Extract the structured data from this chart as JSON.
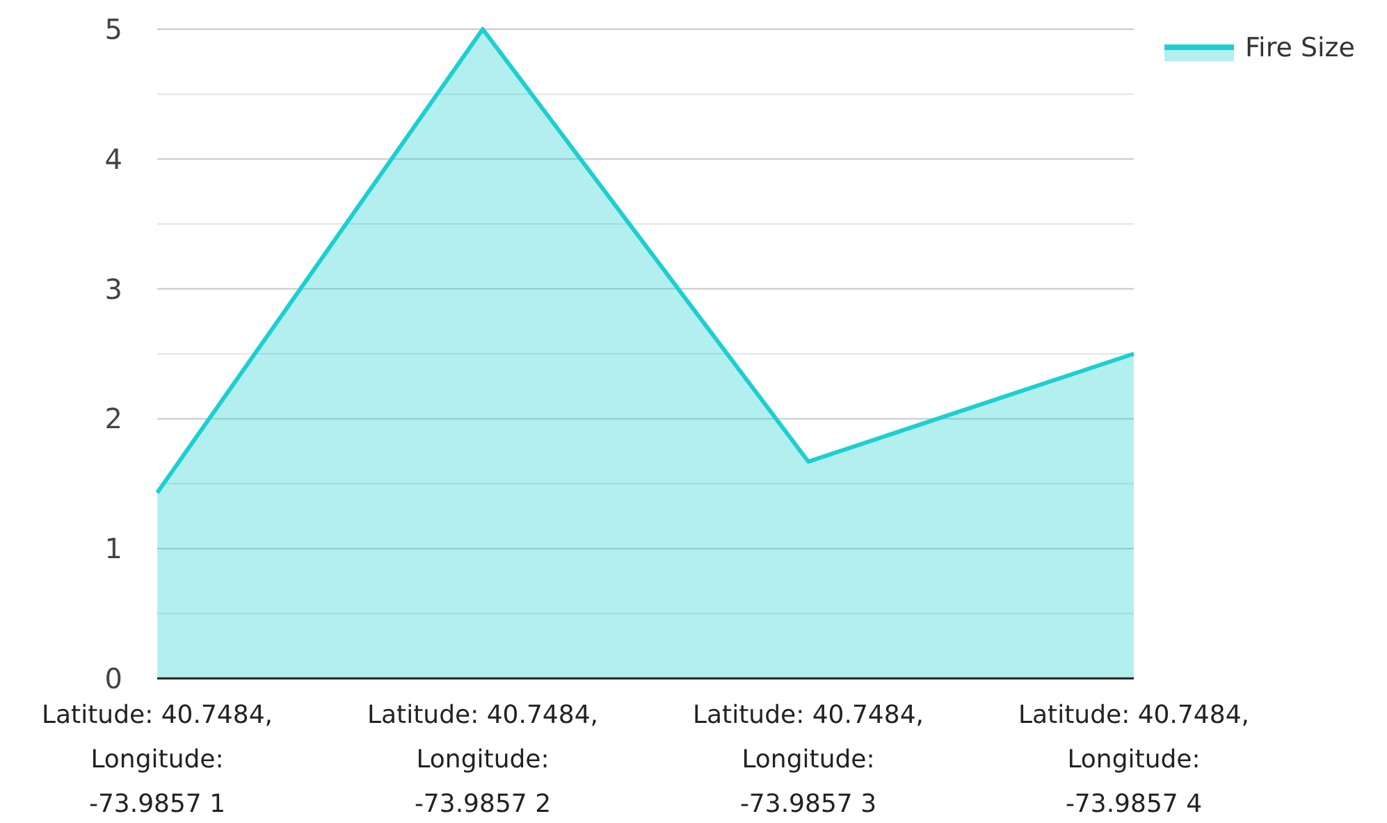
{
  "chart_data": {
    "type": "area",
    "categories": [
      "Latitude: 40.7484, Longitude: -73.9857 1",
      "Latitude: 40.7484, Longitude: -73.9857 2",
      "Latitude: 40.7484, Longitude: -73.9857 3",
      "Latitude: 40.7484, Longitude: -73.9857 4"
    ],
    "series": [
      {
        "name": "Fire Size",
        "color": "#1ccfd0",
        "values": [
          1.43,
          5,
          1.67,
          2.5
        ]
      }
    ],
    "ylim": [
      0,
      5
    ],
    "yticks": [
      0,
      {
        "value": 0.5,
        "label": null
      },
      1,
      {
        "value": 1.5,
        "label": null
      },
      2,
      {
        "value": 2.5,
        "label": null
      },
      3,
      {
        "value": 3.5,
        "label": null
      },
      4,
      {
        "value": 4.5,
        "label": null
      },
      5
    ],
    "grid": "y",
    "legend": "top right"
  }
}
